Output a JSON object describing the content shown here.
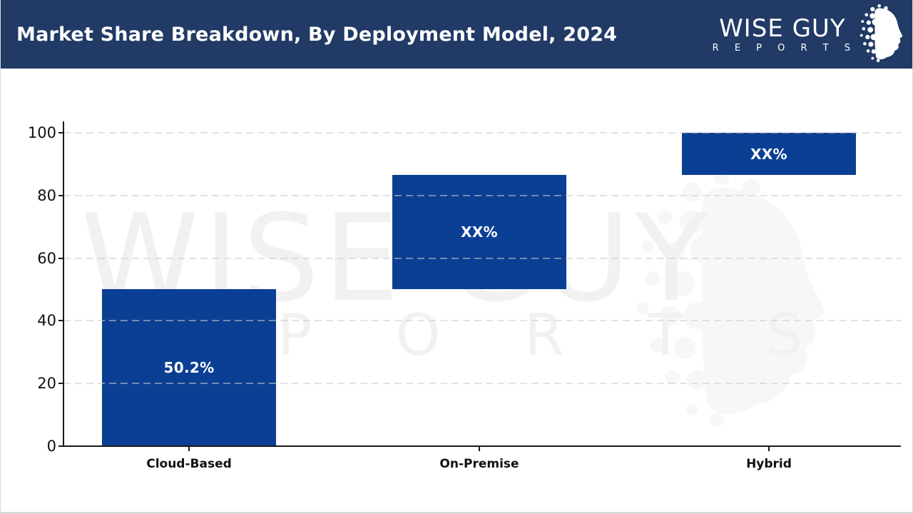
{
  "header": {
    "title": "Market Share Breakdown, By Deployment Model, 2024",
    "bg_color": "#213A66",
    "logo": {
      "line1": "WISE GUY",
      "line2": "R E P O R T S"
    }
  },
  "watermark": {
    "line1": "WISE GUY",
    "line2": "P O R T S"
  },
  "chart_data": {
    "type": "bar",
    "subtype": "waterfall-stacked",
    "title": "Market Share Breakdown, By Deployment Model, 2024",
    "categories": [
      "Cloud-Based",
      "On-Premise",
      "Hybrid"
    ],
    "segments": [
      {
        "category": "Cloud-Based",
        "start": 0,
        "end": 50.2,
        "label": "50.2%"
      },
      {
        "category": "On-Premise",
        "start": 50.2,
        "end": 86.5,
        "label": "XX%"
      },
      {
        "category": "Hybrid",
        "start": 86.5,
        "end": 100,
        "label": "XX%"
      }
    ],
    "yticks": [
      0,
      20,
      40,
      60,
      80,
      100
    ],
    "ylim": [
      0,
      104
    ],
    "xlabel": "",
    "ylabel": "",
    "grid": "dashed-horizontal-over-bars",
    "legend": "none",
    "bar_color": "#0B3F94",
    "bar_label_color": "#FFFFFF",
    "axis_color": "#1a1a1a",
    "grid_color": "#cbcbcb"
  }
}
